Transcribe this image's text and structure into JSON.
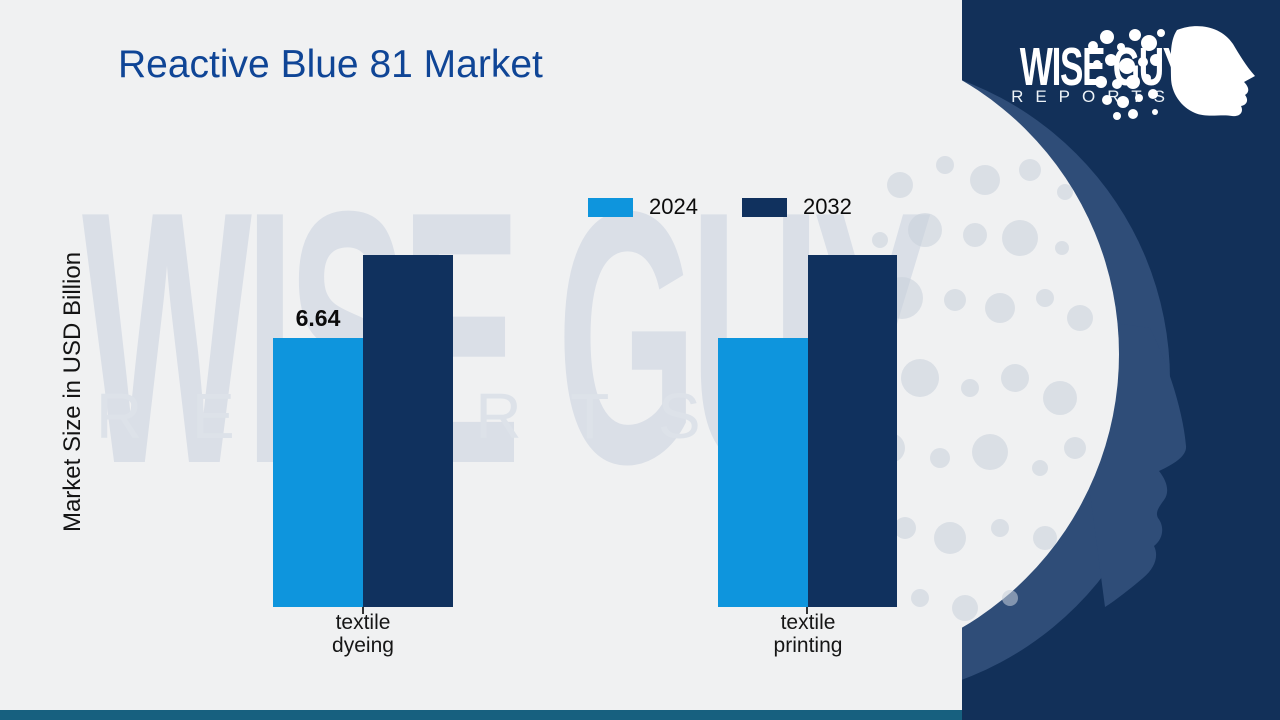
{
  "title": "Reactive Blue 81 Market",
  "brand": {
    "logo_line1": "WISE GUY",
    "logo_line2": "REPORTS",
    "watermark_line1": "WISE GUY",
    "watermark_line2": "R E P O R T S"
  },
  "chart_data": {
    "type": "bar",
    "title": "Reactive Blue 81 Market",
    "xlabel": "",
    "ylabel": "Market Size in USD Billion",
    "categories": [
      "textile dyeing",
      "textile printing"
    ],
    "categories_lines": [
      [
        "textile",
        "dyeing"
      ],
      [
        "textile",
        "printing"
      ]
    ],
    "series": [
      {
        "name": "2024",
        "color": "#0e95dd",
        "values": [
          6.64,
          6.64
        ]
      },
      {
        "name": "2032",
        "color": "#10315e",
        "values": [
          8.7,
          8.7
        ]
      }
    ],
    "data_label": {
      "series": "2024",
      "category": "textile dyeing",
      "text": "6.64",
      "value": 6.64
    },
    "legend_position": "top-center",
    "gridlines": false,
    "y_axis_tick_labels_visible": false
  },
  "colors": {
    "background": "#f0f1f2",
    "title_text": "#0f4596",
    "bar_2024": "#0e95dd",
    "bar_2032": "#10315e",
    "panel_navy": "#123059",
    "panel_face_shade": "#2f4d78",
    "panel_circle": "#f0f1f2",
    "footer_teal": "#17607f",
    "watermark_text": "#dadfe7",
    "watermark_dots": "#c9d1dc"
  }
}
